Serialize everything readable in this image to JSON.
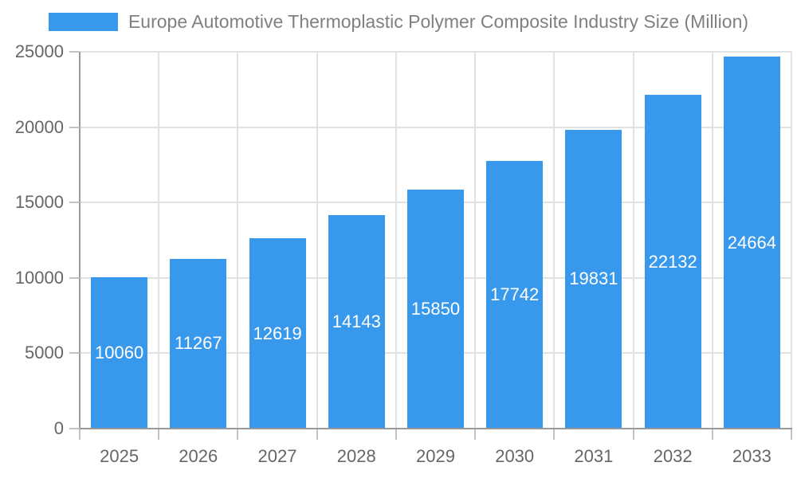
{
  "legend": {
    "label": "Europe Automotive Thermoplastic Polymer Composite Industry Size (Million)"
  },
  "chart_data": {
    "type": "bar",
    "title": "Europe Automotive Thermoplastic Polymer Composite Industry Size (Million)",
    "categories": [
      "2025",
      "2026",
      "2027",
      "2028",
      "2029",
      "2030",
      "2031",
      "2032",
      "2033"
    ],
    "values": [
      10060,
      11267,
      12619,
      14143,
      15850,
      17742,
      19831,
      22132,
      24664
    ],
    "yticks": [
      0,
      5000,
      10000,
      15000,
      20000,
      25000
    ],
    "ylim": [
      0,
      25000
    ],
    "xlabel": "",
    "ylabel": "",
    "grid": true,
    "legend_position": "top",
    "value_labels": "inside-center",
    "colors": {
      "bar": "#3899EC",
      "grid": "#E2E2E2",
      "axis": "#9A9A9A",
      "tick": "#C2C2C2",
      "axis_label": "#666666",
      "title": "#808080",
      "value_label": "#FFFFFF"
    }
  }
}
